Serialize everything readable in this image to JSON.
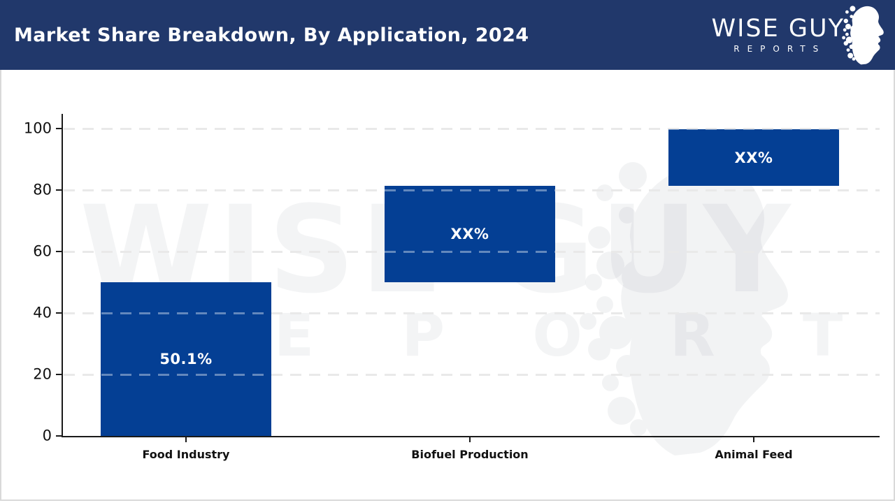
{
  "header": {
    "title": "Market Share Breakdown, By Application, 2024",
    "logo": {
      "name": "WISE GUY",
      "subtitle": "REPORTS"
    }
  },
  "watermark": {
    "line1": "WISE GUY",
    "line2": "R E P O R T S"
  },
  "chart_data": {
    "type": "bar",
    "subtype": "floating_segment_bars",
    "title": "Market Share Breakdown, By Application, 2024",
    "categories": [
      "Food Industry",
      "Biofuel Production",
      "Animal Feed"
    ],
    "segments": [
      {
        "category": "Food Industry",
        "start": 0,
        "end": 50.1,
        "value_label": "50.1%"
      },
      {
        "category": "Biofuel Production",
        "start": 50.1,
        "end": 81.3,
        "value_label": "XX%"
      },
      {
        "category": "Animal Feed",
        "start": 81.3,
        "end": 99.8,
        "value_label": "XX%"
      }
    ],
    "yticks": [
      0,
      20,
      40,
      60,
      80,
      100
    ],
    "ylim": [
      0,
      105
    ],
    "xlabel": "",
    "ylabel": "",
    "grid": "horizontal_dashed",
    "legend": "none"
  },
  "colors": {
    "header_bg": "#21386b",
    "bar": "#043f94",
    "axis": "#1a1a1a",
    "gridline": "#dcdcdc",
    "content_border": "#d9d9d9",
    "value_label_text": "#ffffff",
    "tick_label_text": "#111111"
  }
}
